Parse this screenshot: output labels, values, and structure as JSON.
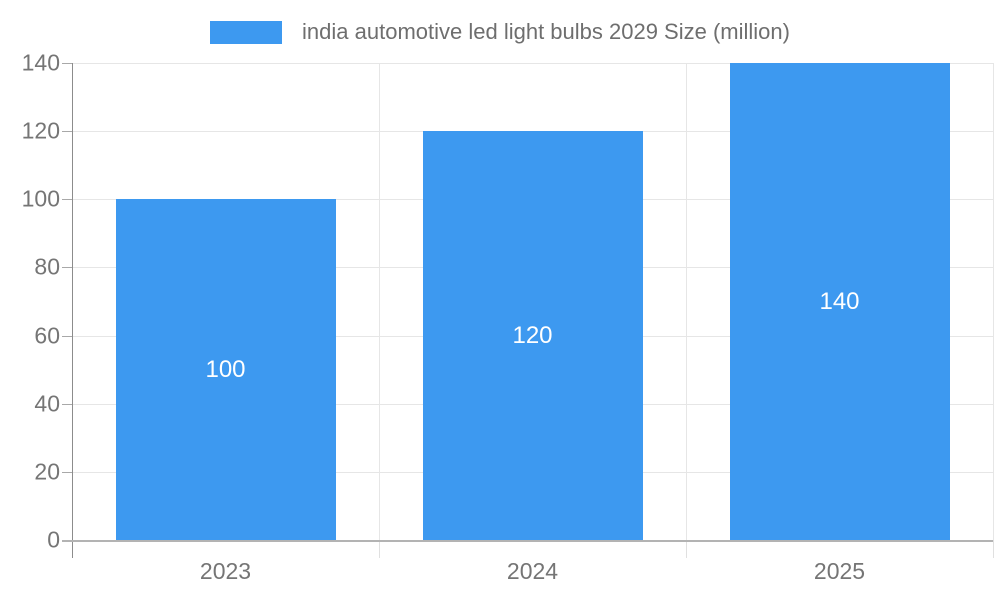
{
  "chart_data": {
    "type": "bar",
    "title": "india automotive led light bulbs 2029 Size (million)",
    "categories": [
      "2023",
      "2024",
      "2025"
    ],
    "series": [
      {
        "name": "india automotive led light bulbs 2029 Size (million)",
        "values": [
          100,
          120,
          140
        ]
      }
    ],
    "data_labels_shown": true,
    "xlabel": "",
    "ylabel": "",
    "ylim": [
      0,
      140
    ],
    "yticks": [
      0,
      20,
      40,
      60,
      80,
      100,
      120,
      140
    ],
    "grid": true,
    "legend_position": "top"
  },
  "legend": {
    "label": "india automotive led light bulbs 2029 Size (million)",
    "swatch_color": "#3d99f0"
  },
  "colors": {
    "bar": "#3d99f0",
    "bar_label": "#ffffff",
    "axis_text": "#757575",
    "legend_text": "#6e6e6e",
    "grid": "#e6e6e6",
    "y_axis_line": "#8c8c8c",
    "x_axis_line": "#b3b3b3",
    "background": "#ffffff"
  }
}
